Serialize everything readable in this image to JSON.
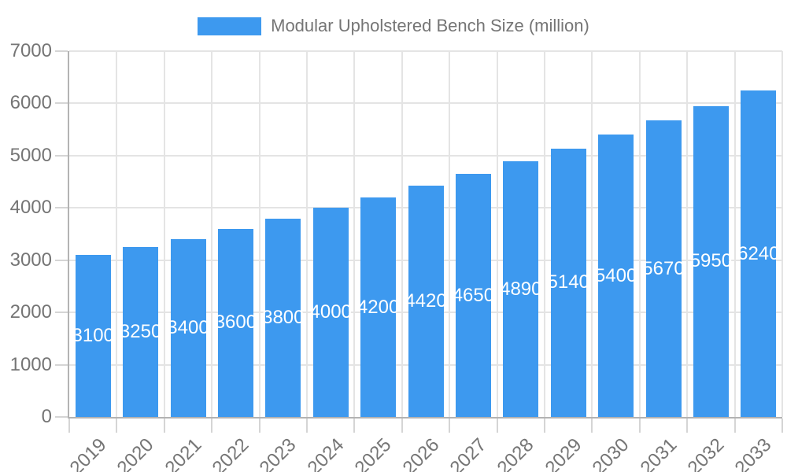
{
  "legend": {
    "label": "Modular Upholstered Bench Size (million)"
  },
  "colors": {
    "bar": "#3d99ef",
    "grid": "#e4e4e4",
    "axis": "#b3b3b3",
    "tick": "#d5d5d5",
    "tick_text": "#757575",
    "value_label_text": "#ffffff"
  },
  "chart_data": {
    "type": "bar",
    "title": "",
    "series_name": "Modular Upholstered Bench Size (million)",
    "categories": [
      "2019",
      "2020",
      "2021",
      "2022",
      "2023",
      "2024",
      "2025",
      "2026",
      "2027",
      "2028",
      "2029",
      "2030",
      "2031",
      "2032",
      "2033"
    ],
    "values": [
      3100,
      3250,
      3400,
      3600,
      3800,
      4000,
      4200,
      4420,
      4650,
      4890,
      5140,
      5400,
      5670,
      5950,
      6240
    ],
    "bar_labels": [
      "3100",
      "3250",
      "3400",
      "3600",
      "3800",
      "4000",
      "4200",
      "4420",
      "4650",
      "4890",
      "5140",
      "5400",
      "5670",
      "5950",
      "6240"
    ],
    "xlabel": "",
    "ylabel": "",
    "ylim": [
      0,
      7000
    ],
    "yticks": [
      0,
      1000,
      2000,
      3000,
      4000,
      5000,
      6000,
      7000
    ],
    "ytick_labels": [
      "0",
      "1000",
      "2000",
      "3000",
      "4000",
      "5000",
      "6000",
      "7000"
    ],
    "grid": true,
    "legend_position": "top",
    "x_label_rotation_deg": -45,
    "bar_labels_position": "center"
  }
}
